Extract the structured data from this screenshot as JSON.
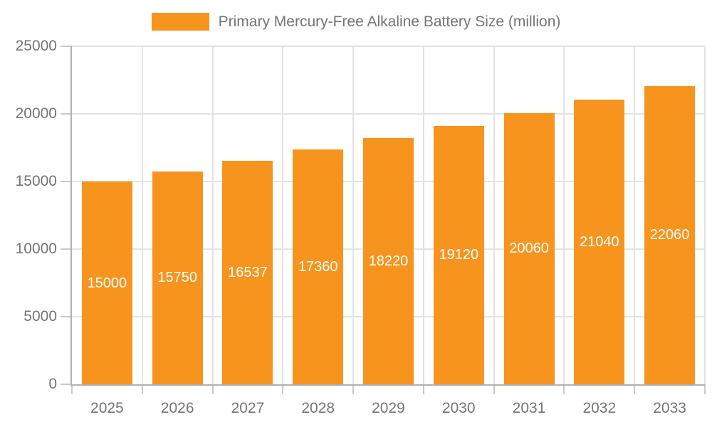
{
  "legend": {
    "label": "Primary Mercury-Free Alkaline Battery Size (million)"
  },
  "chart_data": {
    "type": "bar",
    "title": "Primary Mercury-Free Alkaline Battery Size (million)",
    "series": [
      {
        "name": "Primary Mercury-Free Alkaline Battery Size (million)",
        "values": [
          15000,
          15750,
          16537,
          17360,
          18220,
          19120,
          20060,
          21040,
          22060
        ]
      }
    ],
    "categories": [
      "2025",
      "2026",
      "2027",
      "2028",
      "2029",
      "2030",
      "2031",
      "2032",
      "2033"
    ],
    "xlabel": "",
    "ylabel": "",
    "ylim": [
      0,
      25000
    ],
    "yticks": [
      0,
      5000,
      10000,
      15000,
      20000,
      25000
    ],
    "grid": true,
    "legend_position": "top",
    "data_labels": "inside-center",
    "colors": {
      "bar": "#F7941E",
      "bar_label_text": "#FFFFFF",
      "axis_line": "#B0B0B0",
      "gridline": "#E3E3E3",
      "tick": "#C9C9C9",
      "axis_text": "#757575",
      "background": "#FFFFFF"
    }
  }
}
